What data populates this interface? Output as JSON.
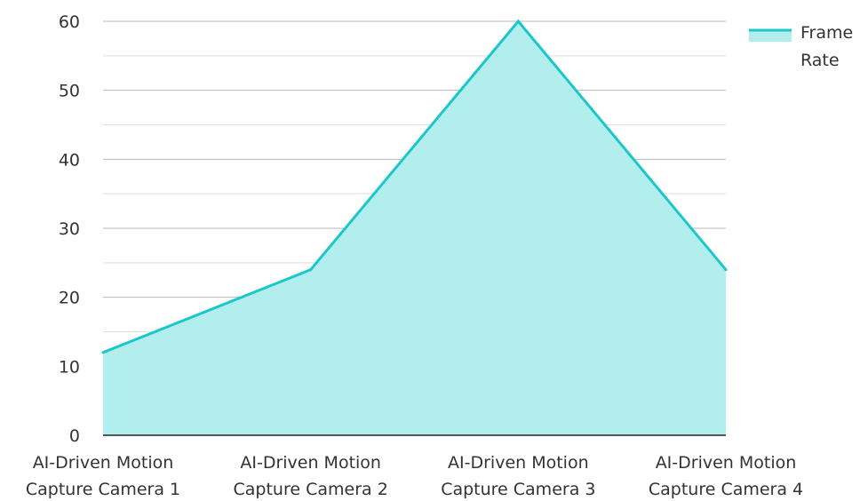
{
  "chart_data": {
    "type": "area",
    "categories": [
      "AI-Driven Motion Capture Camera 1",
      "AI-Driven Motion Capture Camera 2",
      "AI-Driven Motion Capture Camera 3",
      "AI-Driven Motion Capture Camera 4"
    ],
    "category_lines": [
      [
        "AI-Driven Motion",
        "Capture Camera 1"
      ],
      [
        "AI-Driven Motion",
        "Capture Camera 2"
      ],
      [
        "AI-Driven Motion",
        "Capture Camera 3"
      ],
      [
        "AI-Driven Motion",
        "Capture Camera 4"
      ]
    ],
    "series": [
      {
        "name": "Frame Rate",
        "values": [
          12,
          24,
          60,
          24
        ]
      }
    ],
    "legend_lines": [
      "Frame",
      "Rate"
    ],
    "title": "",
    "xlabel": "",
    "ylabel": "",
    "ylim": [
      0,
      60
    ],
    "yticks": [
      0,
      10,
      20,
      30,
      40,
      50,
      60
    ],
    "grid": true,
    "legend_position": "top-right",
    "colors": {
      "line": "#1cc7c9",
      "fill": "#b3eeee",
      "grid_major": "#b8b8b8",
      "grid_minor": "#dddddd",
      "axis": "#222222"
    }
  }
}
